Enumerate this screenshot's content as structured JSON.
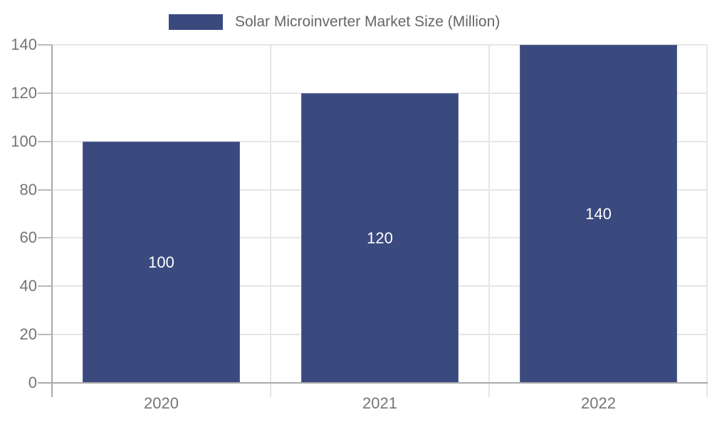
{
  "chart_data": {
    "type": "bar",
    "title": "Solar Microinverter Market Size (Million)",
    "legend": {
      "position": "top",
      "entries": [
        "Solar Microinverter Market Size (Million)"
      ]
    },
    "categories": [
      "2020",
      "2021",
      "2022"
    ],
    "series": [
      {
        "name": "Solar Microinverter Market Size (Million)",
        "values": [
          100,
          120,
          140
        ]
      }
    ],
    "bar_value_labels": [
      "100",
      "120",
      "140"
    ],
    "xlabel": "",
    "ylabel": "",
    "ylim": [
      0,
      140
    ],
    "yticks": [
      0,
      20,
      40,
      60,
      80,
      100,
      120,
      140
    ],
    "grid": true,
    "colors": {
      "bar": "#3A4A7F",
      "bar_label_text": "#FFFFFF",
      "gridline": "#E6E6E6",
      "axis_line": "#AAAAAA",
      "tick_stub": "#BBBBBB",
      "tick_text": "#757575",
      "legend_text": "#666666",
      "background": "#FFFFFF"
    }
  }
}
